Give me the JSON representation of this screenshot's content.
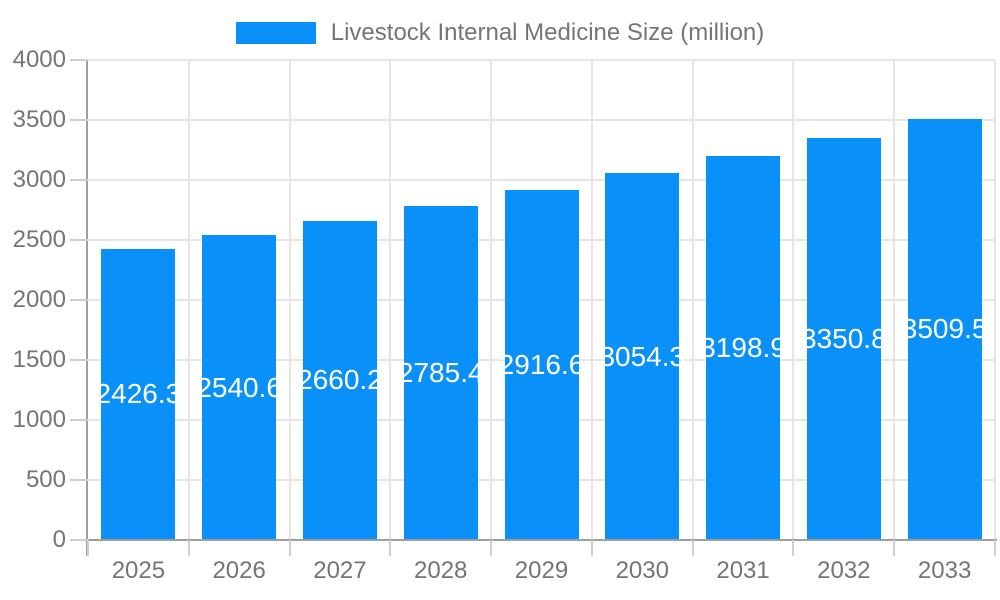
{
  "legend": {
    "label": "Livestock Internal Medicine Size (million)"
  },
  "chart_data": {
    "type": "bar",
    "title": "Livestock Internal Medicine Size (million)",
    "categories": [
      "2025",
      "2026",
      "2027",
      "2028",
      "2029",
      "2030",
      "2031",
      "2032",
      "2033"
    ],
    "values": [
      2426.3,
      2540.6,
      2660.2,
      2785.4,
      2916.6,
      3054.3,
      3198.9,
      3350.8,
      3509.5
    ],
    "value_labels": [
      "2426.3",
      "2540.6",
      "2660.2",
      "2785.4",
      "2916.6",
      "3054.3",
      "3198.9",
      "3350.8",
      "3509.5"
    ],
    "xlabel": "",
    "ylabel": "",
    "ylim": [
      0,
      4000
    ],
    "yticks": [
      0,
      500,
      1000,
      1500,
      2000,
      2500,
      3000,
      3500,
      4000
    ],
    "grid": true,
    "legend_position": "top-center",
    "colors": {
      "bar": "#0a90f9",
      "bar_label": "#ffffff",
      "axis_text": "#757575",
      "gridline": "#e6e6e6",
      "tick": "#cfcfcf",
      "axis_line": "#9e9e9e",
      "background": "#ffffff"
    }
  }
}
